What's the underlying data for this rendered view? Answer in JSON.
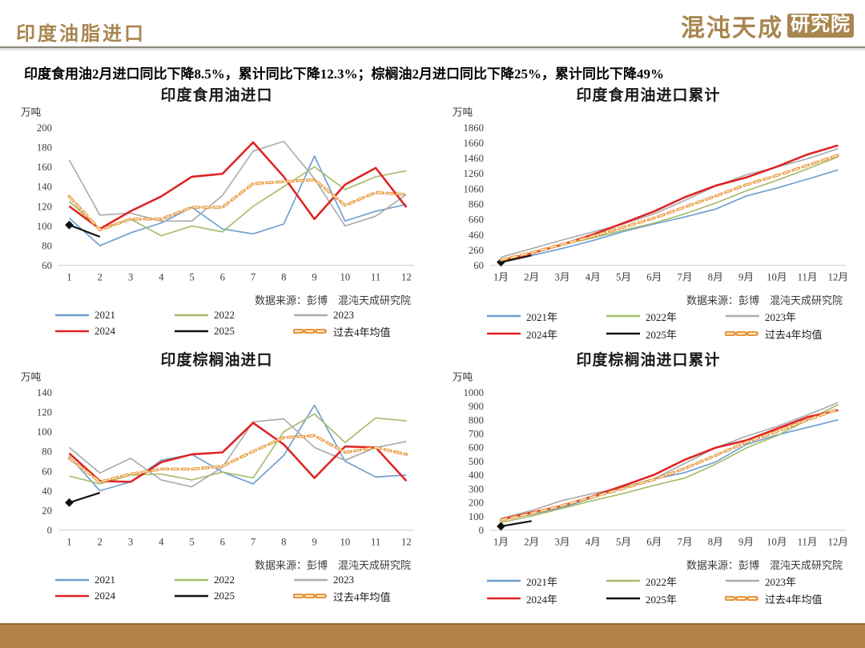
{
  "header": {
    "title": "印度油脂进口",
    "logo_text": "混沌天成",
    "logo_badge": "研究院"
  },
  "subtitle": "印度食用油2月进口同比下降8.5%，累计同比下降12.3%；棕榈油2月进口同比下降25%，累计同比下降49%",
  "source_label": "数据来源：彭博　混沌天成研究院",
  "theme": {
    "brand_gold": "#A8864F",
    "header_rule": "#8C8678",
    "footer_bar": "#B28346",
    "avg_dash_fill": "#FBEFCB"
  },
  "chart_data": [
    {
      "type": "line",
      "title": "印度食用油进口",
      "unit": "万吨",
      "legend_position": "bottom",
      "grid": false,
      "categories": [
        "1",
        "2",
        "3",
        "4",
        "5",
        "6",
        "7",
        "8",
        "9",
        "10",
        "11",
        "12"
      ],
      "ylim": [
        60,
        200
      ],
      "y_ticks": [
        200,
        180,
        160,
        140,
        120,
        100,
        80,
        60
      ],
      "series": [
        {
          "name": "2021",
          "color": "#6F9FD0",
          "values": [
            108,
            80,
            93,
            103,
            119,
            97,
            92,
            102,
            171,
            105,
            115,
            122
          ]
        },
        {
          "name": "2022",
          "color": "#A6BD6C",
          "values": [
            125,
            97,
            107,
            90,
            100,
            94,
            120,
            140,
            160,
            137,
            150,
            156
          ]
        },
        {
          "name": "2023",
          "color": "#ACACAC",
          "values": [
            167,
            111,
            113,
            105,
            105,
            131,
            176,
            186,
            148,
            100,
            110,
            132
          ]
        },
        {
          "name": "2024",
          "color": "#E02222",
          "width": 2.6,
          "values": [
            120,
            97,
            115,
            130,
            150,
            153,
            185,
            150,
            107,
            142,
            159,
            119
          ]
        },
        {
          "name": "2025",
          "color": "#111111",
          "width": 2.2,
          "marker": "diamond",
          "values": [
            101,
            89,
            null,
            null,
            null,
            null,
            null,
            null,
            null,
            null,
            null,
            null
          ]
        },
        {
          "name": "过去4年均值",
          "color": "#E8953F",
          "dashed": true,
          "values": [
            130,
            96,
            107,
            107,
            119,
            119,
            143,
            145,
            147,
            121,
            134,
            132
          ]
        }
      ]
    },
    {
      "type": "line",
      "title": "印度食用油进口累计",
      "unit": "万吨",
      "legend_position": "bottom",
      "grid": false,
      "categories": [
        "1月",
        "2月",
        "3月",
        "4月",
        "5月",
        "6月",
        "7月",
        "8月",
        "9月",
        "10月",
        "11月",
        "12月"
      ],
      "ylim": [
        60,
        1860
      ],
      "y_ticks": [
        1860,
        1660,
        1460,
        1260,
        1060,
        860,
        660,
        460,
        260,
        60
      ],
      "series": [
        {
          "name": "2021年",
          "color": "#6F9FD0",
          "values": [
            108,
            188,
            281,
            384,
            503,
            600,
            692,
            794,
            965,
            1070,
            1185,
            1307
          ]
        },
        {
          "name": "2022年",
          "color": "#A6BD6C",
          "values": [
            125,
            222,
            329,
            419,
            519,
            613,
            733,
            873,
            1033,
            1170,
            1320,
            1476
          ]
        },
        {
          "name": "2023年",
          "color": "#ACACAC",
          "values": [
            167,
            278,
            391,
            496,
            601,
            732,
            908,
            1094,
            1242,
            1342,
            1452,
            1584
          ]
        },
        {
          "name": "2024年",
          "color": "#E02222",
          "width": 2.6,
          "values": [
            120,
            217,
            332,
            462,
            612,
            765,
            950,
            1100,
            1207,
            1349,
            1508,
            1627
          ]
        },
        {
          "name": "2025年",
          "color": "#111111",
          "width": 2.2,
          "marker": "diamond",
          "values": [
            101,
            190,
            null,
            null,
            null,
            null,
            null,
            null,
            null,
            null,
            null,
            null
          ]
        },
        {
          "name": "过去4年均值",
          "color": "#E8953F",
          "dashed": true,
          "values": [
            130,
            226,
            333,
            440,
            559,
            678,
            821,
            965,
            1112,
            1233,
            1366,
            1498
          ]
        }
      ]
    },
    {
      "type": "line",
      "title": "印度棕榈油进口",
      "unit": "万吨",
      "legend_position": "bottom",
      "grid": false,
      "categories": [
        "1",
        "2",
        "3",
        "4",
        "5",
        "6",
        "7",
        "8",
        "9",
        "10",
        "11",
        "12"
      ],
      "ylim": [
        0,
        140
      ],
      "y_ticks": [
        140,
        120,
        100,
        80,
        60,
        40,
        20,
        0
      ],
      "series": [
        {
          "name": "2021",
          "color": "#6F9FD0",
          "values": [
            75,
            40,
            49,
            71,
            77,
            59,
            47,
            76,
            127,
            70,
            54,
            56
          ]
        },
        {
          "name": "2022",
          "color": "#A6BD6C",
          "values": [
            55,
            47,
            56,
            57,
            51,
            59,
            53,
            100,
            118,
            89,
            114,
            111
          ]
        },
        {
          "name": "2023",
          "color": "#ACACAC",
          "values": [
            84,
            58,
            73,
            51,
            44,
            64,
            110,
            113,
            84,
            71,
            84,
            90
          ]
        },
        {
          "name": "2024",
          "color": "#E02222",
          "width": 2.6,
          "values": [
            78,
            50,
            49,
            69,
            77,
            79,
            109,
            87,
            53,
            85,
            84,
            50
          ]
        },
        {
          "name": "2025",
          "color": "#111111",
          "width": 2.2,
          "marker": "diamond",
          "values": [
            28,
            38,
            null,
            null,
            null,
            null,
            null,
            null,
            null,
            null,
            null,
            null
          ]
        },
        {
          "name": "过去4年均值",
          "color": "#E8953F",
          "dashed": true,
          "values": [
            73,
            49,
            57,
            62,
            62,
            65,
            80,
            94,
            96,
            79,
            84,
            77
          ]
        }
      ]
    },
    {
      "type": "line",
      "title": "印度棕榈油进口累计",
      "unit": "万吨",
      "legend_position": "bottom",
      "grid": false,
      "categories": [
        "1月",
        "2月",
        "3月",
        "4月",
        "5月",
        "6月",
        "7月",
        "8月",
        "9月",
        "10月",
        "11月",
        "12月"
      ],
      "ylim": [
        0,
        1000
      ],
      "y_ticks": [
        1000,
        900,
        800,
        700,
        600,
        500,
        400,
        300,
        200,
        100,
        0
      ],
      "series": [
        {
          "name": "2021年",
          "color": "#6F9FD0",
          "values": [
            75,
            115,
            164,
            235,
            312,
            371,
            418,
            494,
            621,
            691,
            745,
            801
          ]
        },
        {
          "name": "2022年",
          "color": "#A6BD6C",
          "values": [
            55,
            102,
            158,
            215,
            266,
            325,
            378,
            478,
            596,
            685,
            799,
            910
          ]
        },
        {
          "name": "2023年",
          "color": "#ACACAC",
          "values": [
            84,
            142,
            215,
            266,
            310,
            374,
            484,
            597,
            681,
            752,
            836,
            926
          ]
        },
        {
          "name": "2024年",
          "color": "#E02222",
          "width": 2.6,
          "values": [
            78,
            128,
            177,
            246,
            323,
            402,
            511,
            598,
            651,
            736,
            820,
            870
          ]
        },
        {
          "name": "2025年",
          "color": "#111111",
          "width": 2.2,
          "marker": "diamond",
          "values": [
            28,
            66,
            null,
            null,
            null,
            null,
            null,
            null,
            null,
            null,
            null,
            null
          ]
        },
        {
          "name": "过去4年均值",
          "color": "#E8953F",
          "dashed": true,
          "values": [
            73,
            122,
            179,
            241,
            303,
            368,
            448,
            542,
            637,
            716,
            800,
            877
          ]
        }
      ]
    }
  ]
}
